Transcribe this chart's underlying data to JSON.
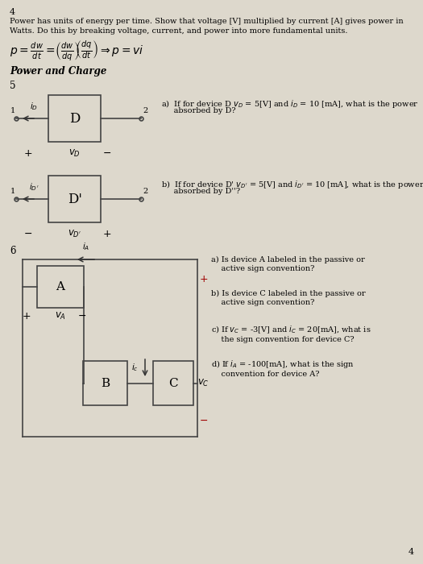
{
  "bg_color": "#ddd8cc",
  "page_number": "4",
  "title_line1": "Power has units of energy per time. Show that voltage [V] multiplied by current [A] gives power in",
  "title_line2": "Watts. Do this by breaking voltage, current, and power into more fundamental units.",
  "section_title": "Power and Charge",
  "problem5_label": "5",
  "problem6_label": "6",
  "qa_5a_line1": "a)  If for device D $v_D$ = 5[V] and $i_D$ = 10 [mA], what is the power",
  "qa_5a_line2": "     absorbed by D?",
  "qa_5b_line1": "b)  If for device D' $v_{D'}$ = 5[V] and $i_{D'}$ = 10 [mA], what is the power",
  "qa_5b_line2": "     absorbed by D''?",
  "qa_6a": "a) Is device A labeled in the passive or\n    active sign convention?",
  "qa_6b": "b) Is device C labeled in the passive or\n    active sign convention?",
  "qa_6c": "c) If $v_C$ = -3[V] and $i_C$ = 20[mA], what is\n    the sign convention for device C?",
  "qa_6d": "d) If $i_A$ = -100[mA], what is the sign\n    convention for device A?"
}
